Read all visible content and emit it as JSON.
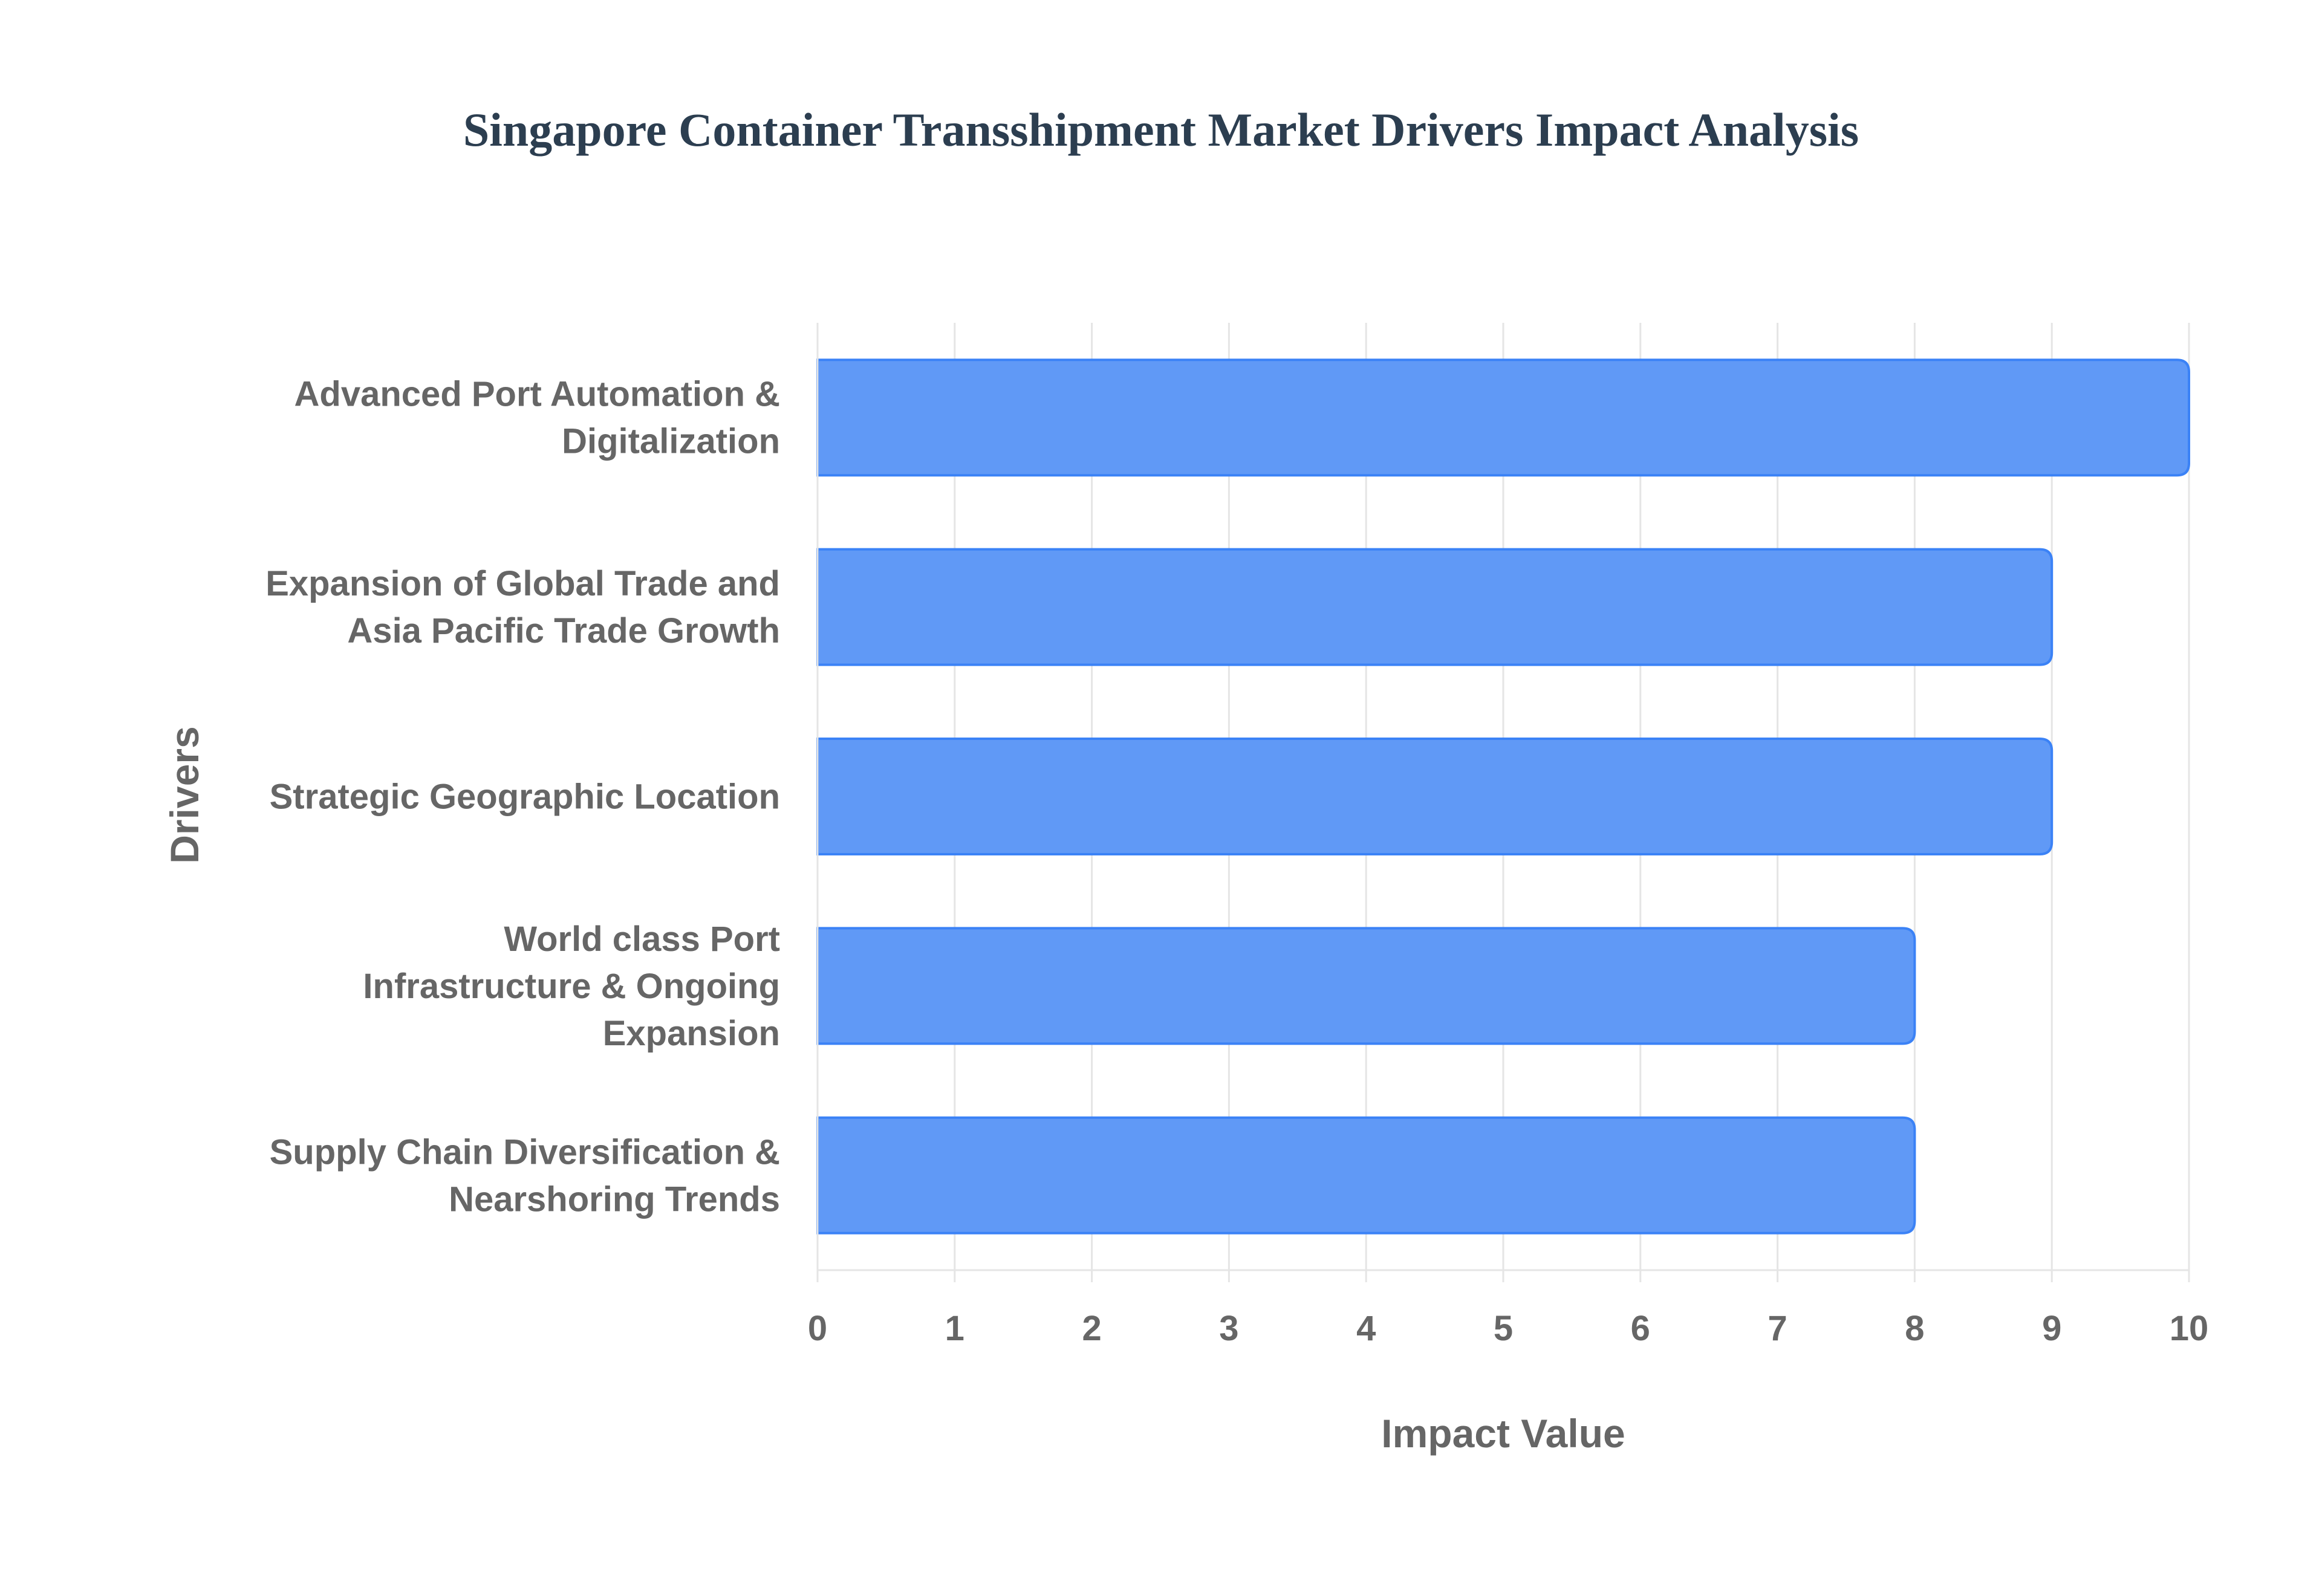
{
  "title": "Singapore Container Transshipment Market Drivers Impact Analysis",
  "colors": {
    "bar_fill": "#5b96f6",
    "bar_border": "#3b82f6",
    "grid": "#e5e5e5",
    "label": "#666666",
    "title": "#2c3e50"
  },
  "chart_data": {
    "type": "bar",
    "orientation": "horizontal",
    "title": "Singapore Container Transshipment Market Drivers Impact Analysis",
    "xlabel": "Impact Value",
    "ylabel": "Drivers",
    "xlim": [
      0,
      10
    ],
    "x_ticks": [
      "0",
      "1",
      "2",
      "3",
      "4",
      "5",
      "6",
      "7",
      "8",
      "9",
      "10"
    ],
    "grid": true,
    "legend": "none",
    "categories": [
      "Advanced Port Automation & Digitalization",
      "Expansion of Global Trade and Asia Pacific Trade Growth",
      "Strategic Geographic Location",
      "World class Port Infrastructure & Ongoing Expansion",
      "Supply Chain Diversification & Nearshoring Trends"
    ],
    "category_lines": [
      [
        "Advanced Port Automation &",
        "Digitalization"
      ],
      [
        "Expansion of Global Trade and",
        "Asia Pacific Trade Growth"
      ],
      [
        "Strategic Geographic Location"
      ],
      [
        "World class Port",
        "Infrastructure & Ongoing",
        "Expansion"
      ],
      [
        "Supply Chain Diversification &",
        "Nearshoring Trends"
      ]
    ],
    "values": [
      10,
      9,
      9,
      8,
      8
    ]
  }
}
